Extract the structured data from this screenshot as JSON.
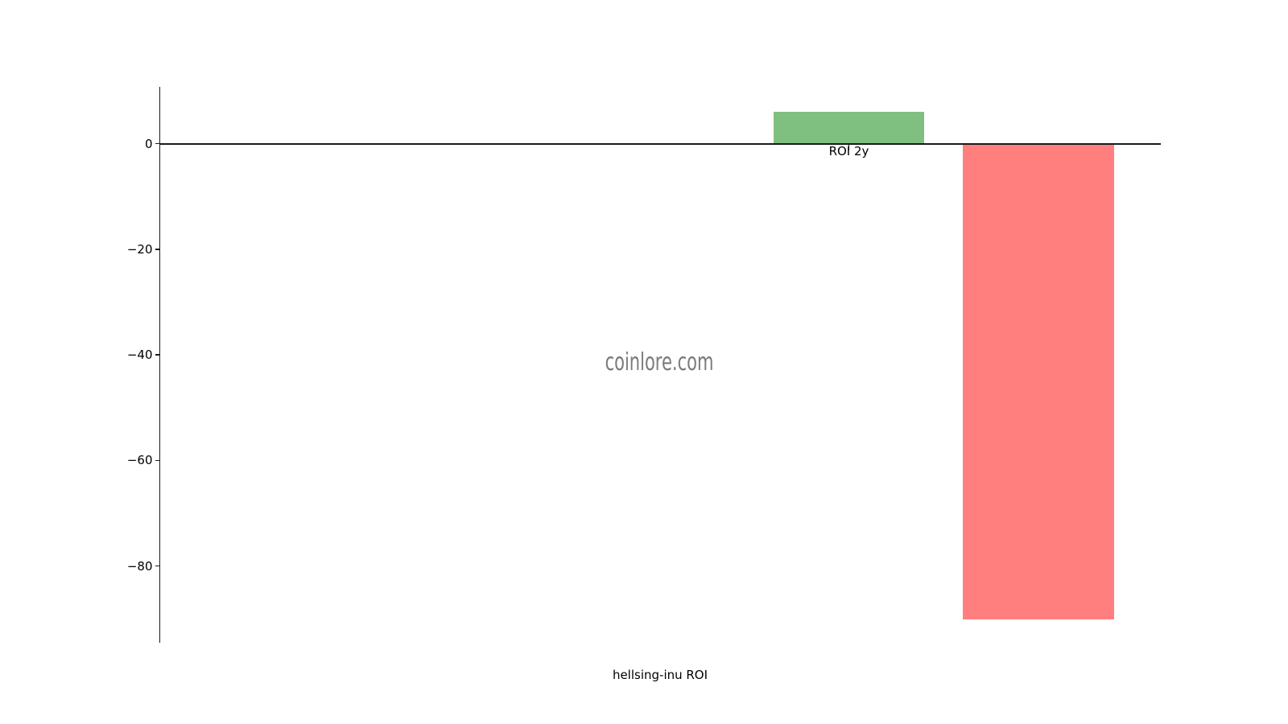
{
  "chart_data": {
    "type": "bar",
    "title": "",
    "categories": [
      "ROI 2y",
      ""
    ],
    "values": [
      6,
      -90
    ],
    "bar_colors": [
      "#7fbf7f",
      "#ff7f7f"
    ],
    "xlabel": "hellsing-inu ROI",
    "ylabel": "",
    "yticks": [
      0,
      -20,
      -40,
      -60,
      -80
    ],
    "ytick_labels": [
      "0",
      "−20",
      "−40",
      "−60",
      "−80"
    ],
    "ylim": [
      -94.5,
      10.8
    ],
    "grid": false,
    "legend": "none",
    "axis_color": "#1a1a1a",
    "background_color": "#ffffff"
  },
  "watermark": {
    "text": "coinlore.com",
    "color": "#7a7a7a"
  }
}
